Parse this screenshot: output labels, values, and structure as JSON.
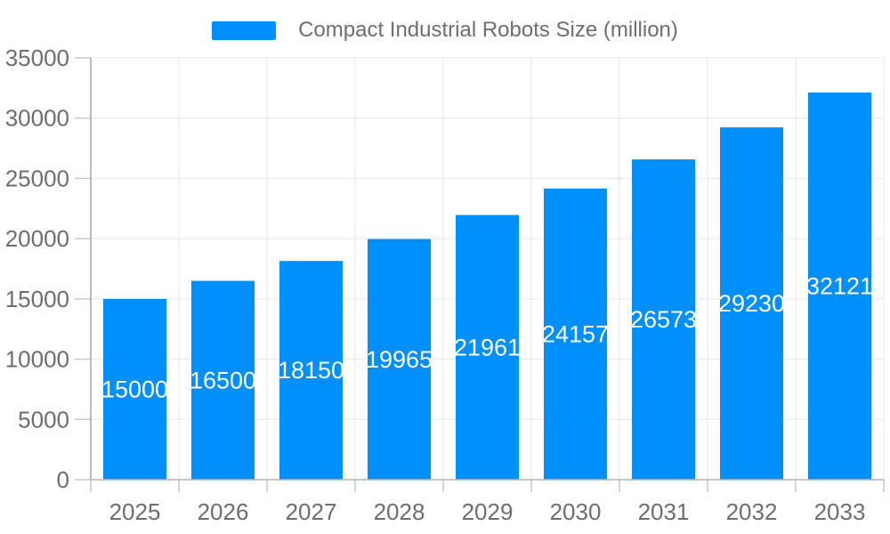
{
  "legend": {
    "label": "Compact Industrial Robots Size (million)"
  },
  "colors": {
    "bar": "#008FFB",
    "grid": "#e7e7e7",
    "tick": "#c9c9c9",
    "axis_border_y": "#a6a6a6",
    "axis_border_x": "#b6b6b6",
    "axis_label": "#6e6e6e",
    "legend_label": "#6e6e6e",
    "value_label": "#ffffff",
    "background": "#ffffff"
  },
  "chart_data": {
    "type": "bar",
    "title": "Compact Industrial Robots Size (million)",
    "categories": [
      "2025",
      "2026",
      "2027",
      "2028",
      "2029",
      "2030",
      "2031",
      "2032",
      "2033"
    ],
    "series": [
      {
        "name": "Compact Industrial Robots Size (million)",
        "values": [
          15000,
          16500,
          18150,
          19965,
          21961,
          24157,
          26573,
          29230,
          32121
        ]
      }
    ],
    "xlabel": "",
    "ylabel": "",
    "ylim": [
      0,
      35000
    ],
    "yticks": [
      0,
      5000,
      10000,
      15000,
      20000,
      25000,
      30000,
      35000
    ],
    "grid": true,
    "legend_position": "top",
    "value_label_position": "inside-center"
  }
}
